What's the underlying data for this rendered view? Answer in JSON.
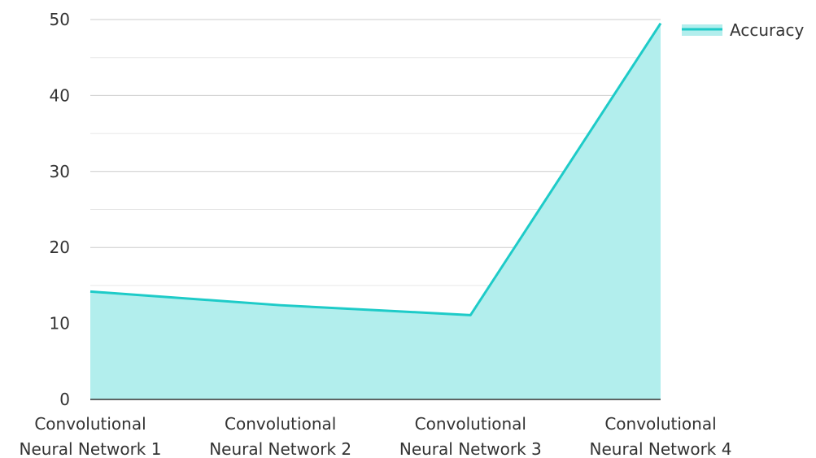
{
  "chart_data": {
    "type": "area",
    "categories": [
      [
        "Convolutional",
        "Neural Network 1"
      ],
      [
        "Convolutional",
        "Neural Network 2"
      ],
      [
        "Convolutional",
        "Neural Network 3"
      ],
      [
        "Convolutional",
        "Neural Network 4"
      ]
    ],
    "series": [
      {
        "name": "Accuracy",
        "values": [
          14.2,
          12.4,
          11.1,
          49.5
        ],
        "line_color": "#1ecbc8",
        "fill_color": "#b2eeed"
      }
    ],
    "ylim": [
      0,
      50
    ],
    "yticks": [
      0,
      10,
      20,
      30,
      40,
      50
    ],
    "minor_grid_step": 5,
    "grid": true,
    "legend": {
      "position": "top-right",
      "entries": [
        "Accuracy"
      ]
    },
    "title": "",
    "xlabel": "",
    "ylabel": ""
  }
}
